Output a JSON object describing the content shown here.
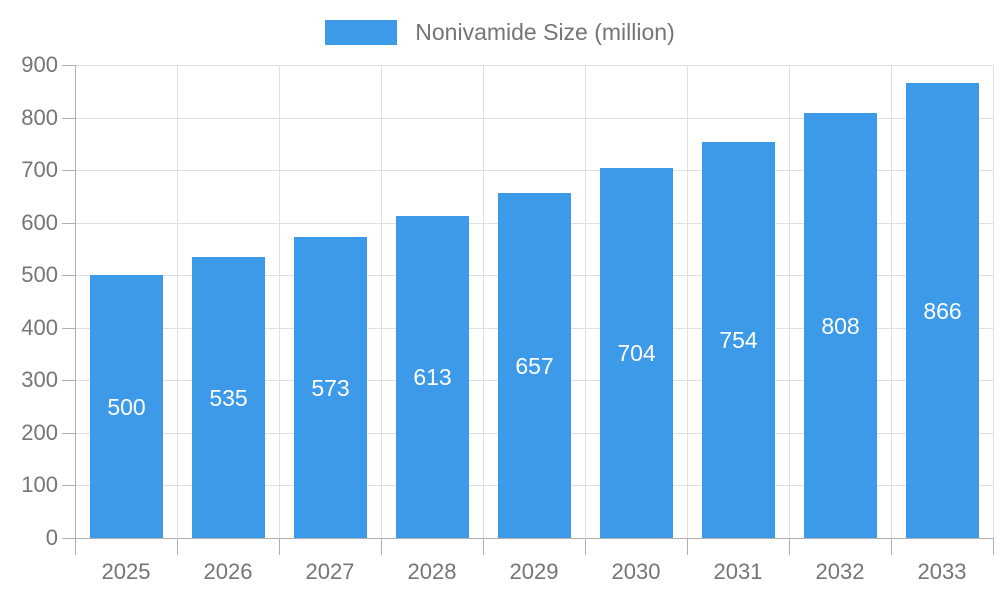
{
  "legend": {
    "label": "Nonivamide Size (million)",
    "swatch_color": "#3D9AE9"
  },
  "chart_data": {
    "type": "bar",
    "title": "",
    "xlabel": "",
    "ylabel": "",
    "categories": [
      "2025",
      "2026",
      "2027",
      "2028",
      "2029",
      "2030",
      "2031",
      "2032",
      "2033"
    ],
    "series": [
      {
        "name": "Nonivamide Size (million)",
        "values": [
          500,
          535,
          573,
          613,
          657,
          704,
          754,
          808,
          866
        ],
        "color": "#3D9AE9"
      }
    ],
    "value_labels": [
      "500",
      "535",
      "573",
      "613",
      "657",
      "704",
      "754",
      "808",
      "866"
    ],
    "ytick_labels": [
      "0",
      "100",
      "200",
      "300",
      "400",
      "500",
      "600",
      "700",
      "800",
      "900"
    ],
    "ylim": [
      0,
      900
    ],
    "ytick_step": 100,
    "grid": "on",
    "legend_position": "top-center",
    "colors": {
      "bar": "#3D9AE9",
      "bar_value_text": "#ffffff",
      "gridline": "#e0e0e0",
      "axis_line": "#b0b0b0",
      "axis_text": "#757575"
    }
  }
}
